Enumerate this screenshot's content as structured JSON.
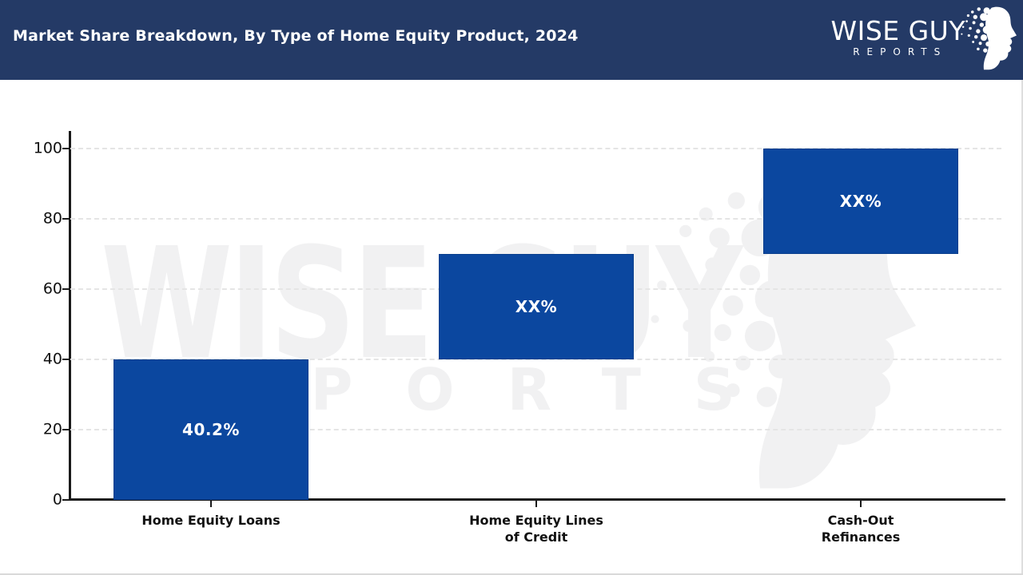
{
  "header": {
    "title": "Market Share Breakdown, By Type of Home Equity Product, 2024",
    "logo": {
      "wordmark": "WISE GUY",
      "subtext": "REPORTS"
    }
  },
  "watermark": {
    "line1": "WISE GUY",
    "line2": "REPORTS"
  },
  "colors": {
    "header_bg": "#243A66",
    "bar": "#0B479F",
    "bar_edge": "#093E8C",
    "grid": "#e5e5e5",
    "axis": "#1a1a1a",
    "bar_label_text": "#ffffff",
    "watermark": "#f1f1f2"
  },
  "chart_data": {
    "type": "bar",
    "subtype": "floating-segment-waterfall",
    "title": "Market Share Breakdown, By Type of Home Equity Product, 2024",
    "categories": [
      "Home Equity Loans",
      "Home Equity Lines\nof Credit",
      "Cash-Out\nRefinances"
    ],
    "segments": [
      {
        "category": "Home Equity Loans",
        "start": 0,
        "end": 40,
        "label": "40.2%"
      },
      {
        "category": "Home Equity Lines of Credit",
        "start": 40,
        "end": 70,
        "label": "XX%"
      },
      {
        "category": "Cash-Out Refinances",
        "start": 70,
        "end": 100,
        "label": "XX%"
      }
    ],
    "ylim": [
      0,
      100
    ],
    "yticks": [
      0,
      20,
      40,
      60,
      80,
      100
    ],
    "xlabel": "",
    "ylabel": "",
    "grid": "horizontal-dashed",
    "legend": "none",
    "bar_color": "#0B479F"
  }
}
